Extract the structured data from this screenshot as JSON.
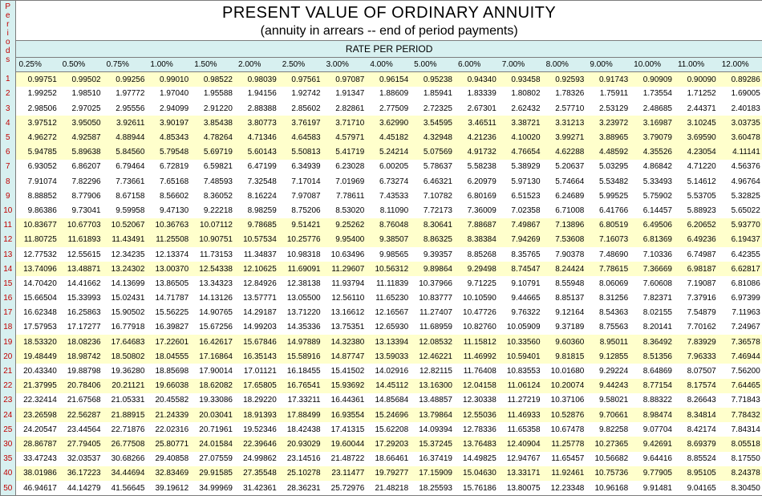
{
  "title1": "PRESENT VALUE OF ORDINARY ANNUITY",
  "title2": "(annuity in arrears -- end of period payments)",
  "rateHeader": "RATE PER PERIOD",
  "periodsLabel": "Periods",
  "colors": {
    "headerBg": "#d7f0f0",
    "stripeBg": "#ffffcc",
    "periodText": "#c00000",
    "border": "#7d7d7d"
  },
  "type": "table",
  "fontSizes": {
    "title1": 20,
    "title2": 16,
    "header": 12,
    "cell": 10
  },
  "rates": [
    "0.25%",
    "0.50%",
    "0.75%",
    "1.00%",
    "1.50%",
    "2.00%",
    "2.50%",
    "3.00%",
    "4.00%",
    "5.00%",
    "6.00%",
    "7.00%",
    "8.00%",
    "9.00%",
    "10.00%",
    "11.00%",
    "12.00%"
  ],
  "periods": [
    1,
    2,
    3,
    4,
    5,
    6,
    7,
    8,
    9,
    10,
    11,
    12,
    13,
    14,
    15,
    16,
    17,
    18,
    19,
    20,
    21,
    22,
    23,
    24,
    25,
    30,
    35,
    40,
    50
  ],
  "stripeGroups": [
    [
      1,
      1
    ],
    [
      4,
      6
    ],
    [
      11,
      12
    ],
    [
      14,
      14
    ],
    [
      19,
      20
    ],
    [
      22,
      22
    ],
    [
      24,
      24
    ],
    [
      30,
      30
    ],
    [
      40,
      40
    ]
  ],
  "rows": {
    "1": [
      "0.99751",
      "0.99502",
      "0.99256",
      "0.99010",
      "0.98522",
      "0.98039",
      "0.97561",
      "0.97087",
      "0.96154",
      "0.95238",
      "0.94340",
      "0.93458",
      "0.92593",
      "0.91743",
      "0.90909",
      "0.90090",
      "0.89286"
    ],
    "2": [
      "1.99252",
      "1.98510",
      "1.97772",
      "1.97040",
      "1.95588",
      "1.94156",
      "1.92742",
      "1.91347",
      "1.88609",
      "1.85941",
      "1.83339",
      "1.80802",
      "1.78326",
      "1.75911",
      "1.73554",
      "1.71252",
      "1.69005"
    ],
    "3": [
      "2.98506",
      "2.97025",
      "2.95556",
      "2.94099",
      "2.91220",
      "2.88388",
      "2.85602",
      "2.82861",
      "2.77509",
      "2.72325",
      "2.67301",
      "2.62432",
      "2.57710",
      "2.53129",
      "2.48685",
      "2.44371",
      "2.40183"
    ],
    "4": [
      "3.97512",
      "3.95050",
      "3.92611",
      "3.90197",
      "3.85438",
      "3.80773",
      "3.76197",
      "3.71710",
      "3.62990",
      "3.54595",
      "3.46511",
      "3.38721",
      "3.31213",
      "3.23972",
      "3.16987",
      "3.10245",
      "3.03735"
    ],
    "5": [
      "4.96272",
      "4.92587",
      "4.88944",
      "4.85343",
      "4.78264",
      "4.71346",
      "4.64583",
      "4.57971",
      "4.45182",
      "4.32948",
      "4.21236",
      "4.10020",
      "3.99271",
      "3.88965",
      "3.79079",
      "3.69590",
      "3.60478"
    ],
    "6": [
      "5.94785",
      "5.89638",
      "5.84560",
      "5.79548",
      "5.69719",
      "5.60143",
      "5.50813",
      "5.41719",
      "5.24214",
      "5.07569",
      "4.91732",
      "4.76654",
      "4.62288",
      "4.48592",
      "4.35526",
      "4.23054",
      "4.11141"
    ],
    "7": [
      "6.93052",
      "6.86207",
      "6.79464",
      "6.72819",
      "6.59821",
      "6.47199",
      "6.34939",
      "6.23028",
      "6.00205",
      "5.78637",
      "5.58238",
      "5.38929",
      "5.20637",
      "5.03295",
      "4.86842",
      "4.71220",
      "4.56376"
    ],
    "8": [
      "7.91074",
      "7.82296",
      "7.73661",
      "7.65168",
      "7.48593",
      "7.32548",
      "7.17014",
      "7.01969",
      "6.73274",
      "6.46321",
      "6.20979",
      "5.97130",
      "5.74664",
      "5.53482",
      "5.33493",
      "5.14612",
      "4.96764"
    ],
    "9": [
      "8.88852",
      "8.77906",
      "8.67158",
      "8.56602",
      "8.36052",
      "8.16224",
      "7.97087",
      "7.78611",
      "7.43533",
      "7.10782",
      "6.80169",
      "6.51523",
      "6.24689",
      "5.99525",
      "5.75902",
      "5.53705",
      "5.32825"
    ],
    "10": [
      "9.86386",
      "9.73041",
      "9.59958",
      "9.47130",
      "9.22218",
      "8.98259",
      "8.75206",
      "8.53020",
      "8.11090",
      "7.72173",
      "7.36009",
      "7.02358",
      "6.71008",
      "6.41766",
      "6.14457",
      "5.88923",
      "5.65022"
    ],
    "11": [
      "10.83677",
      "10.67703",
      "10.52067",
      "10.36763",
      "10.07112",
      "9.78685",
      "9.51421",
      "9.25262",
      "8.76048",
      "8.30641",
      "7.88687",
      "7.49867",
      "7.13896",
      "6.80519",
      "6.49506",
      "6.20652",
      "5.93770"
    ],
    "12": [
      "11.80725",
      "11.61893",
      "11.43491",
      "11.25508",
      "10.90751",
      "10.57534",
      "10.25776",
      "9.95400",
      "9.38507",
      "8.86325",
      "8.38384",
      "7.94269",
      "7.53608",
      "7.16073",
      "6.81369",
      "6.49236",
      "6.19437"
    ],
    "13": [
      "12.77532",
      "12.55615",
      "12.34235",
      "12.13374",
      "11.73153",
      "11.34837",
      "10.98318",
      "10.63496",
      "9.98565",
      "9.39357",
      "8.85268",
      "8.35765",
      "7.90378",
      "7.48690",
      "7.10336",
      "6.74987",
      "6.42355"
    ],
    "14": [
      "13.74096",
      "13.48871",
      "13.24302",
      "13.00370",
      "12.54338",
      "12.10625",
      "11.69091",
      "11.29607",
      "10.56312",
      "9.89864",
      "9.29498",
      "8.74547",
      "8.24424",
      "7.78615",
      "7.36669",
      "6.98187",
      "6.62817"
    ],
    "15": [
      "14.70420",
      "14.41662",
      "14.13699",
      "13.86505",
      "13.34323",
      "12.84926",
      "12.38138",
      "11.93794",
      "11.11839",
      "10.37966",
      "9.71225",
      "9.10791",
      "8.55948",
      "8.06069",
      "7.60608",
      "7.19087",
      "6.81086"
    ],
    "16": [
      "15.66504",
      "15.33993",
      "15.02431",
      "14.71787",
      "14.13126",
      "13.57771",
      "13.05500",
      "12.56110",
      "11.65230",
      "10.83777",
      "10.10590",
      "9.44665",
      "8.85137",
      "8.31256",
      "7.82371",
      "7.37916",
      "6.97399"
    ],
    "17": [
      "16.62348",
      "16.25863",
      "15.90502",
      "15.56225",
      "14.90765",
      "14.29187",
      "13.71220",
      "13.16612",
      "12.16567",
      "11.27407",
      "10.47726",
      "9.76322",
      "9.12164",
      "8.54363",
      "8.02155",
      "7.54879",
      "7.11963"
    ],
    "18": [
      "17.57953",
      "17.17277",
      "16.77918",
      "16.39827",
      "15.67256",
      "14.99203",
      "14.35336",
      "13.75351",
      "12.65930",
      "11.68959",
      "10.82760",
      "10.05909",
      "9.37189",
      "8.75563",
      "8.20141",
      "7.70162",
      "7.24967"
    ],
    "19": [
      "18.53320",
      "18.08236",
      "17.64683",
      "17.22601",
      "16.42617",
      "15.67846",
      "14.97889",
      "14.32380",
      "13.13394",
      "12.08532",
      "11.15812",
      "10.33560",
      "9.60360",
      "8.95011",
      "8.36492",
      "7.83929",
      "7.36578"
    ],
    "20": [
      "19.48449",
      "18.98742",
      "18.50802",
      "18.04555",
      "17.16864",
      "16.35143",
      "15.58916",
      "14.87747",
      "13.59033",
      "12.46221",
      "11.46992",
      "10.59401",
      "9.81815",
      "9.12855",
      "8.51356",
      "7.96333",
      "7.46944"
    ],
    "21": [
      "20.43340",
      "19.88798",
      "19.36280",
      "18.85698",
      "17.90014",
      "17.01121",
      "16.18455",
      "15.41502",
      "14.02916",
      "12.82115",
      "11.76408",
      "10.83553",
      "10.01680",
      "9.29224",
      "8.64869",
      "8.07507",
      "7.56200"
    ],
    "22": [
      "21.37995",
      "20.78406",
      "20.21121",
      "19.66038",
      "18.62082",
      "17.65805",
      "16.76541",
      "15.93692",
      "14.45112",
      "13.16300",
      "12.04158",
      "11.06124",
      "10.20074",
      "9.44243",
      "8.77154",
      "8.17574",
      "7.64465"
    ],
    "23": [
      "22.32414",
      "21.67568",
      "21.05331",
      "20.45582",
      "19.33086",
      "18.29220",
      "17.33211",
      "16.44361",
      "14.85684",
      "13.48857",
      "12.30338",
      "11.27219",
      "10.37106",
      "9.58021",
      "8.88322",
      "8.26643",
      "7.71843"
    ],
    "24": [
      "23.26598",
      "22.56287",
      "21.88915",
      "21.24339",
      "20.03041",
      "18.91393",
      "17.88499",
      "16.93554",
      "15.24696",
      "13.79864",
      "12.55036",
      "11.46933",
      "10.52876",
      "9.70661",
      "8.98474",
      "8.34814",
      "7.78432"
    ],
    "25": [
      "24.20547",
      "23.44564",
      "22.71876",
      "22.02316",
      "20.71961",
      "19.52346",
      "18.42438",
      "17.41315",
      "15.62208",
      "14.09394",
      "12.78336",
      "11.65358",
      "10.67478",
      "9.82258",
      "9.07704",
      "8.42174",
      "7.84314"
    ],
    "30": [
      "28.86787",
      "27.79405",
      "26.77508",
      "25.80771",
      "24.01584",
      "22.39646",
      "20.93029",
      "19.60044",
      "17.29203",
      "15.37245",
      "13.76483",
      "12.40904",
      "11.25778",
      "10.27365",
      "9.42691",
      "8.69379",
      "8.05518"
    ],
    "35": [
      "33.47243",
      "32.03537",
      "30.68266",
      "29.40858",
      "27.07559",
      "24.99862",
      "23.14516",
      "21.48722",
      "18.66461",
      "16.37419",
      "14.49825",
      "12.94767",
      "11.65457",
      "10.56682",
      "9.64416",
      "8.85524",
      "8.17550"
    ],
    "40": [
      "38.01986",
      "36.17223",
      "34.44694",
      "32.83469",
      "29.91585",
      "27.35548",
      "25.10278",
      "23.11477",
      "19.79277",
      "17.15909",
      "15.04630",
      "13.33171",
      "11.92461",
      "10.75736",
      "9.77905",
      "8.95105",
      "8.24378"
    ],
    "50": [
      "46.94617",
      "44.14279",
      "41.56645",
      "39.19612",
      "34.99969",
      "31.42361",
      "28.36231",
      "25.72976",
      "21.48218",
      "18.25593",
      "15.76186",
      "13.80075",
      "12.23348",
      "10.96168",
      "9.91481",
      "9.04165",
      "8.30450"
    ]
  }
}
